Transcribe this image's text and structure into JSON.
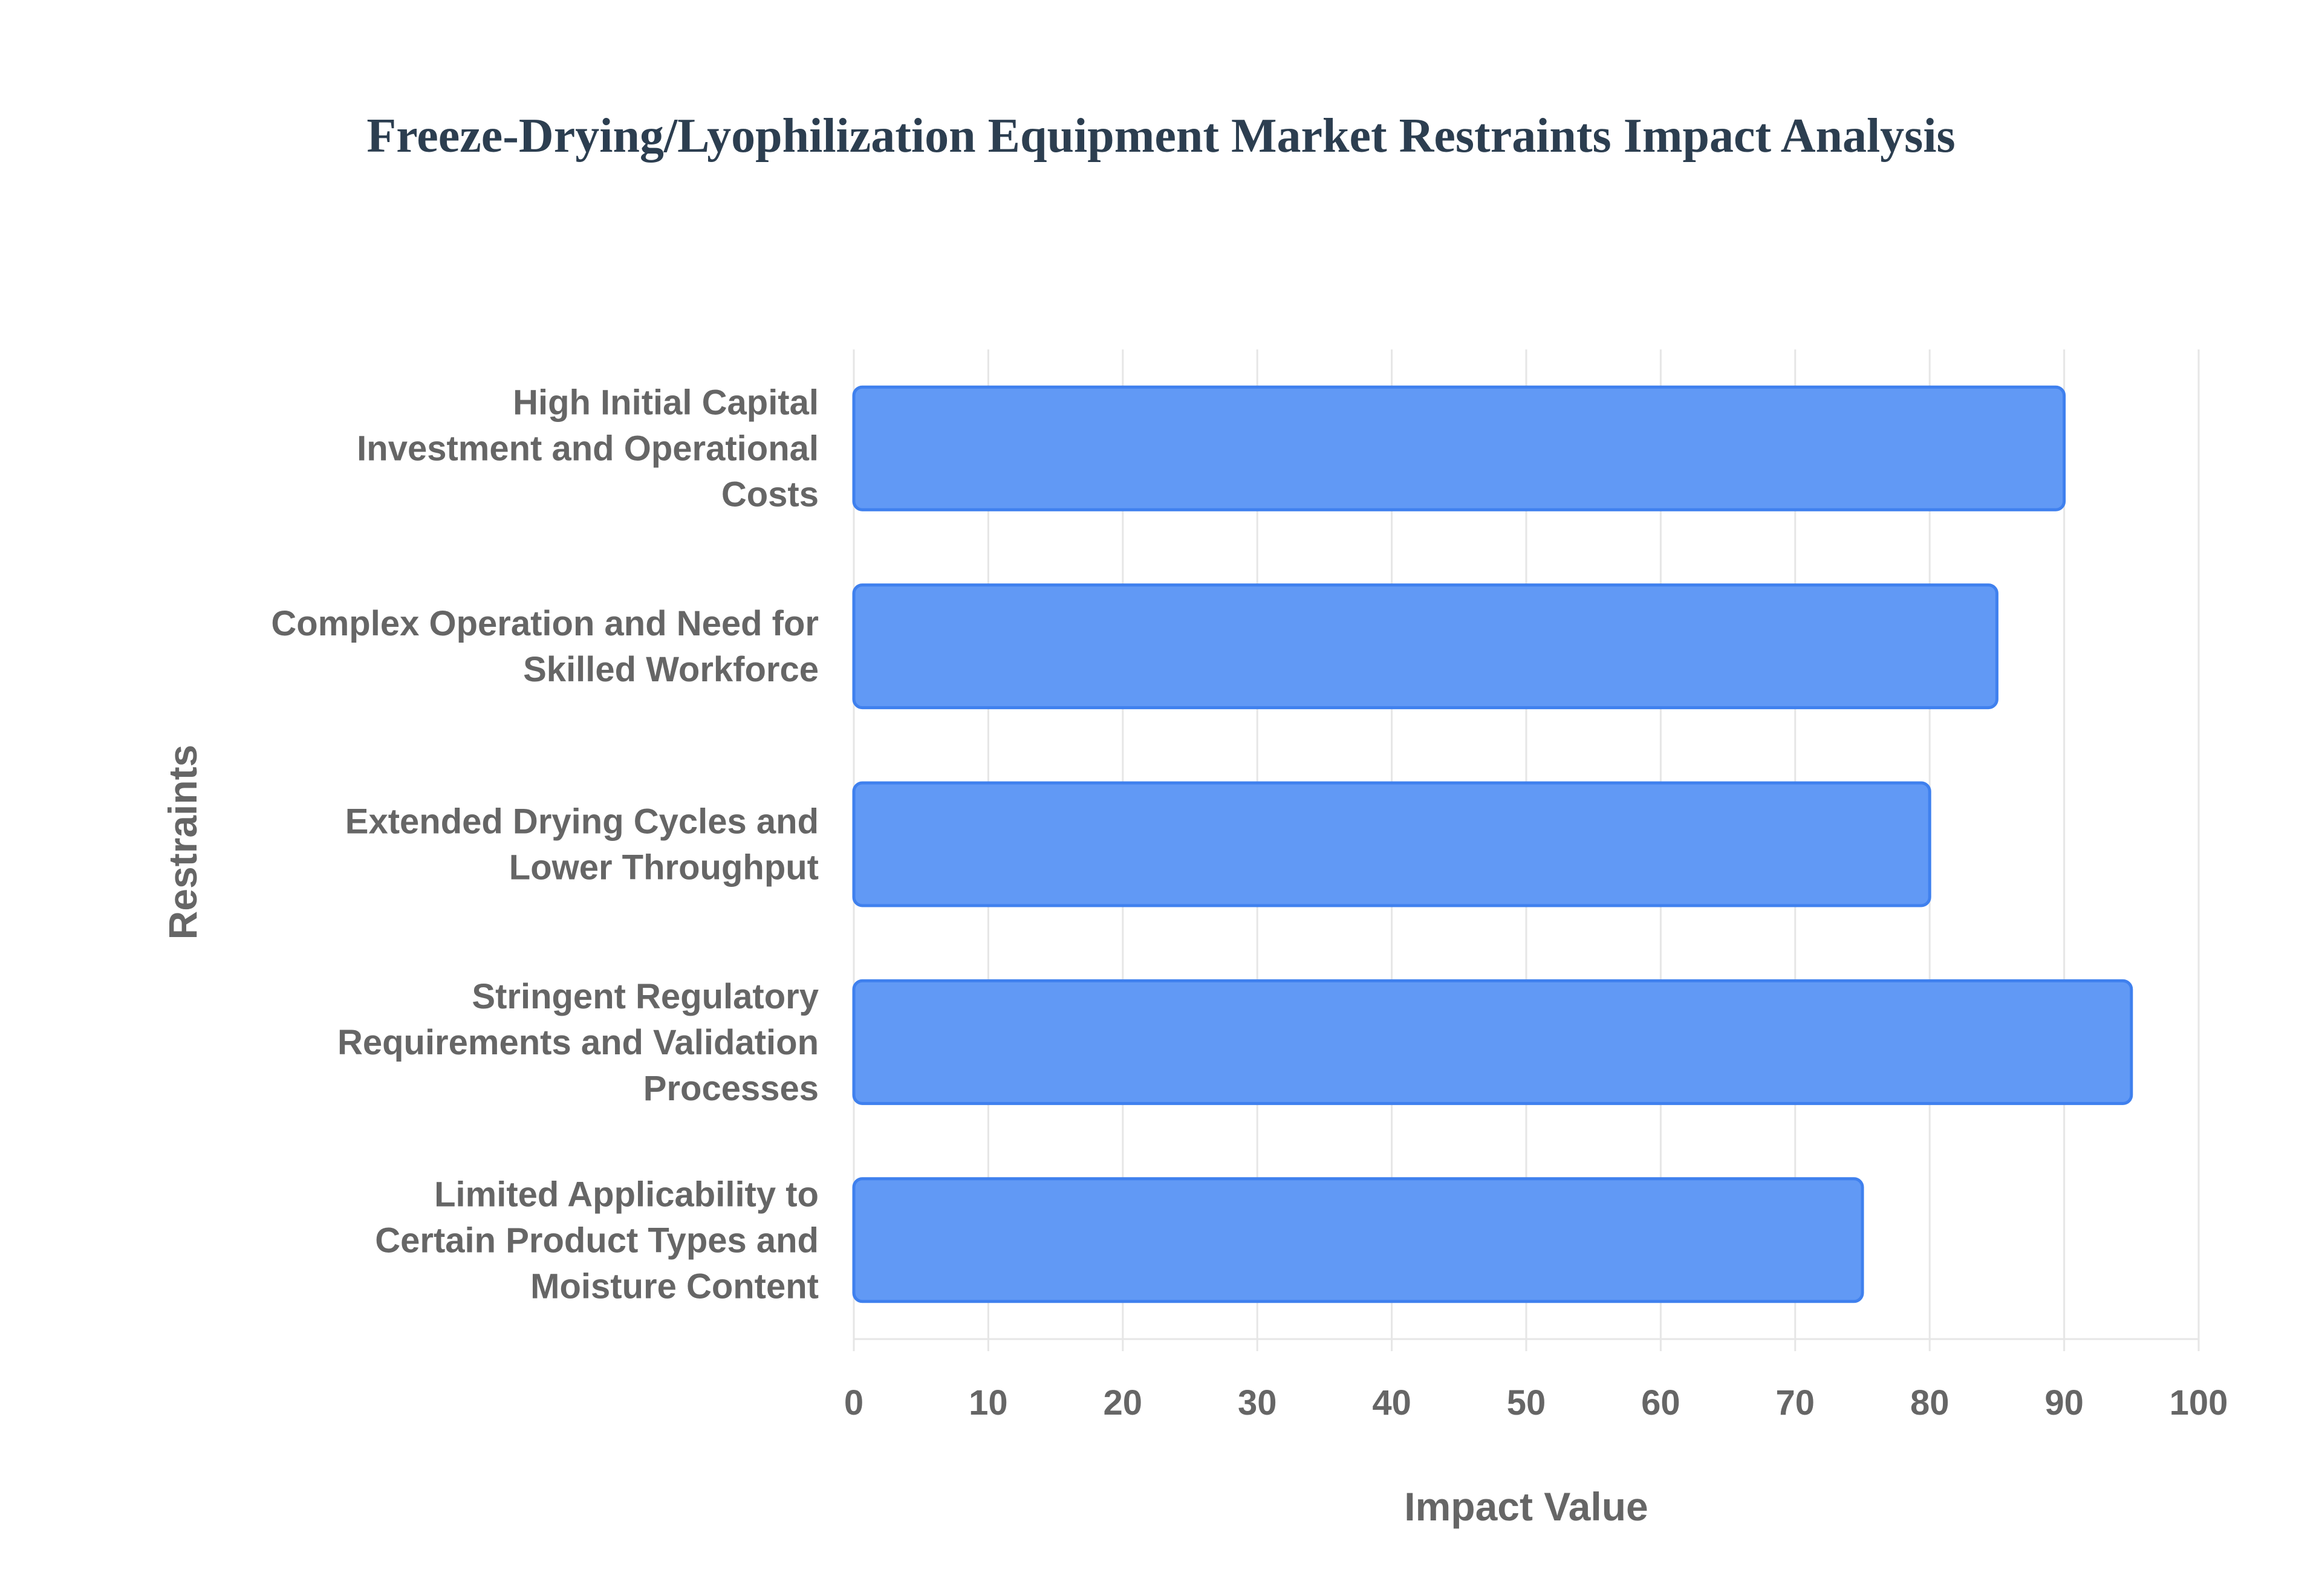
{
  "chart_data": {
    "type": "bar",
    "orientation": "horizontal",
    "title": "Freeze-Drying/Lyophilization Equipment Market Restraints Impact Analysis",
    "xlabel": "Impact Value",
    "ylabel": "Restraints",
    "xlim": [
      0,
      100
    ],
    "xticks": [
      0,
      10,
      20,
      30,
      40,
      50,
      60,
      70,
      80,
      90,
      100
    ],
    "grid": true,
    "categories": [
      [
        "High Initial Capital",
        "Investment and Operational",
        "Costs"
      ],
      [
        "Complex Operation and Need for",
        "Skilled Workforce"
      ],
      [
        "Extended Drying Cycles and",
        "Lower Throughput"
      ],
      [
        "Stringent Regulatory",
        "Requirements and Validation",
        "Processes"
      ],
      [
        "Limited Applicability to",
        "Certain Product Types and",
        "Moisture Content"
      ]
    ],
    "values": [
      90,
      85,
      80,
      95,
      75
    ],
    "colors": {
      "bar_fill": "#6199f5",
      "bar_stroke": "#3f80ee",
      "grid": "#e6e6e6",
      "text": "#666666",
      "title": "#2c3e50"
    }
  }
}
